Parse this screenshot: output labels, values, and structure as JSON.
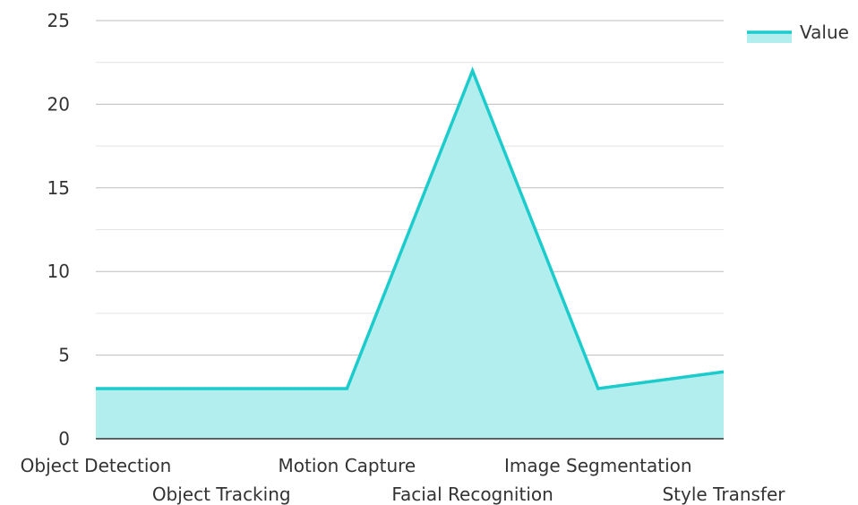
{
  "chart_data": {
    "type": "area",
    "categories": [
      "Object Detection",
      "Object Tracking",
      "Motion Capture",
      "Facial Recognition",
      "Image Segmentation",
      "Style Transfer"
    ],
    "series": [
      {
        "name": "Value",
        "values": [
          3,
          3,
          3,
          22,
          3,
          4
        ]
      }
    ],
    "ylim": [
      0,
      25
    ],
    "yticks": [
      0,
      5,
      10,
      15,
      20,
      25
    ],
    "grid": true,
    "legend_position": "top-right",
    "colors": {
      "line": "#1ccbcc",
      "fill": "#b2eeee"
    }
  }
}
